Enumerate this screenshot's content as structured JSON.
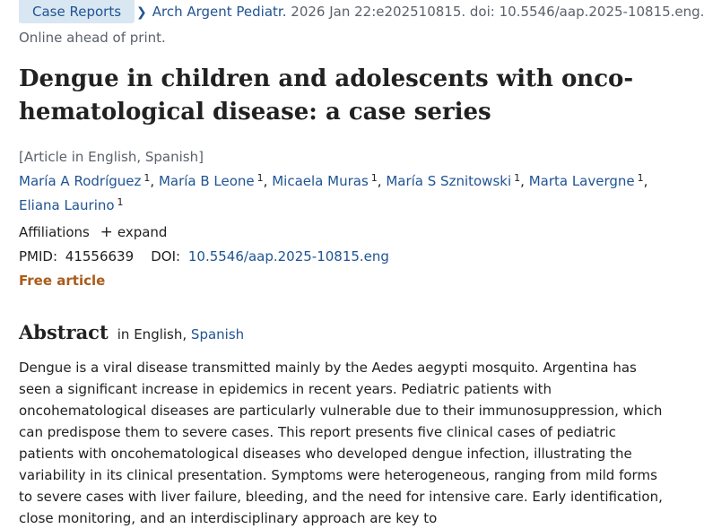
{
  "citation": {
    "pub_type": "Case Reports",
    "journal": "Arch Argent Pediatr.",
    "details": "2026 Jan 22:e202510815. doi: 10.5546/aap.2025-10815.eng.",
    "status": "Online ahead of print."
  },
  "article": {
    "title": "Dengue in children and adolescents with onco-hematological disease: a case series",
    "languages": "[Article in English, Spanish]",
    "authors": [
      {
        "name": "María A Rodríguez",
        "aff": "1"
      },
      {
        "name": "María B Leone",
        "aff": "1"
      },
      {
        "name": "Micaela Muras",
        "aff": "1"
      },
      {
        "name": "María S Sznitowski",
        "aff": "1"
      },
      {
        "name": "Marta Lavergne",
        "aff": "1"
      },
      {
        "name": "Eliana Laurino",
        "aff": "1"
      }
    ],
    "separator": ",",
    "affiliations_label": "Affiliations",
    "expand_label": "expand",
    "expand_icon": "+",
    "pmid_label": "PMID:",
    "pmid": "41556639",
    "doi_label": "DOI:",
    "doi": "10.5546/aap.2025-10815.eng",
    "free_label": "Free article"
  },
  "abstract": {
    "heading": "Abstract",
    "lang_prefix": "in English,",
    "alt_lang": "Spanish",
    "text": "Dengue is a viral disease transmitted mainly by the Aedes aegypti mosquito. Argentina has seen a significant increase in epidemics in recent years. Pediatric patients with oncohematological diseases are particularly vulnerable due to their immunosuppression, which can predispose them to severe cases. This report presents five clinical cases of pediatric patients with oncohematological diseases who developed dengue infection, illustrating the variability in its clinical presentation. Symptoms were heterogeneous, ranging from mild forms to severe cases with liver failure, bleeding, and the need for intensive care. Early identification, close monitoring, and an interdisciplinary approach are key to"
  },
  "colors": {
    "link": "#205493",
    "pub_type_bg": "#d9e7f2",
    "free_article": "#a95c1b",
    "muted_text": "#5b616b"
  },
  "icons": {
    "chevron": "chevron-right-icon",
    "expand": "plus-icon"
  }
}
